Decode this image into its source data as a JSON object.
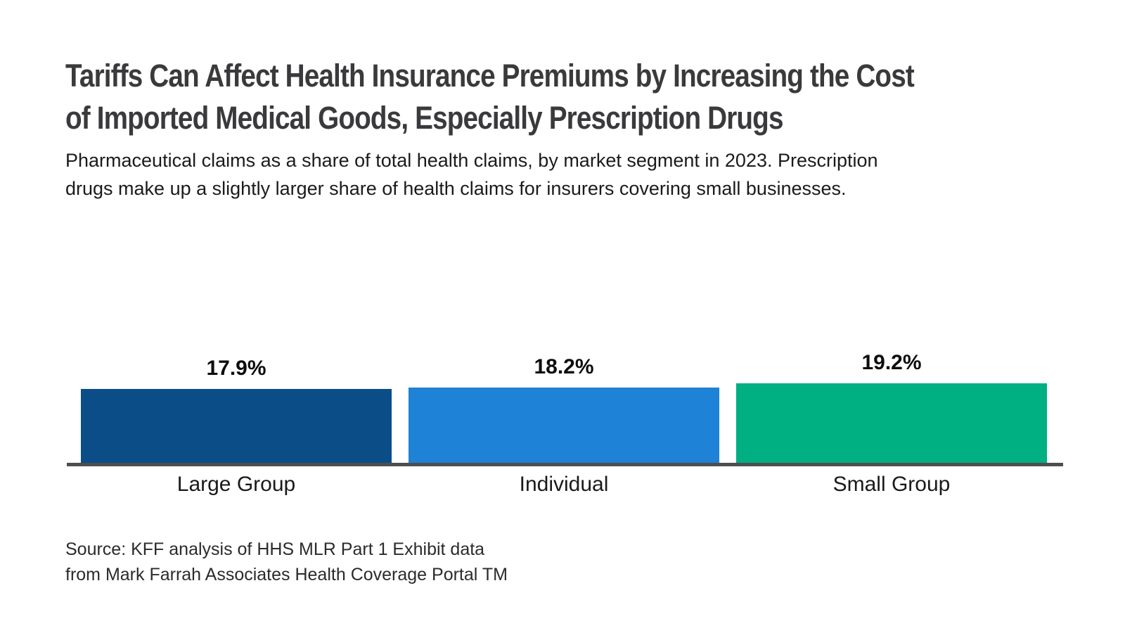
{
  "header": {
    "title_lines": [
      "Tariffs Can Affect Health Insurance Premiums by Increasing the Cost",
      "of Imported Medical Goods, Especially Prescription Drugs"
    ],
    "subtitle_lines": [
      "Pharmaceutical claims as a share of total health claims, by market segment in 2023. Prescription",
      "drugs make up a slightly larger share of health claims for insurers covering small businesses."
    ]
  },
  "chart_data": {
    "type": "bar",
    "title": "Tariffs Can Affect Health Insurance Premiums by Increasing the Cost of Imported Medical Goods, Especially Prescription Drugs",
    "subtitle": "Pharmaceutical claims as a share of total health claims, by market segment in 2023. Prescription drugs make up a slightly larger share of health claims for insurers covering small businesses.",
    "categories": [
      "Large Group",
      "Individual",
      "Small Group"
    ],
    "values": [
      17.9,
      18.2,
      19.2
    ],
    "value_labels": [
      "17.9%",
      "18.2%",
      "19.2%"
    ],
    "unit": "%",
    "bar_colors": [
      "#0b4e87",
      "#1e82d6",
      "#00af82"
    ],
    "axis_color": "#4d4e50",
    "xlabel": "",
    "ylabel": "",
    "ylim": [
      0,
      55
    ],
    "grid": false,
    "legend": false
  },
  "footer": {
    "source_lines": [
      "Source: KFF analysis of HHS MLR Part 1 Exhibit data",
      "from Mark Farrah Associates Health Coverage Portal TM"
    ]
  }
}
